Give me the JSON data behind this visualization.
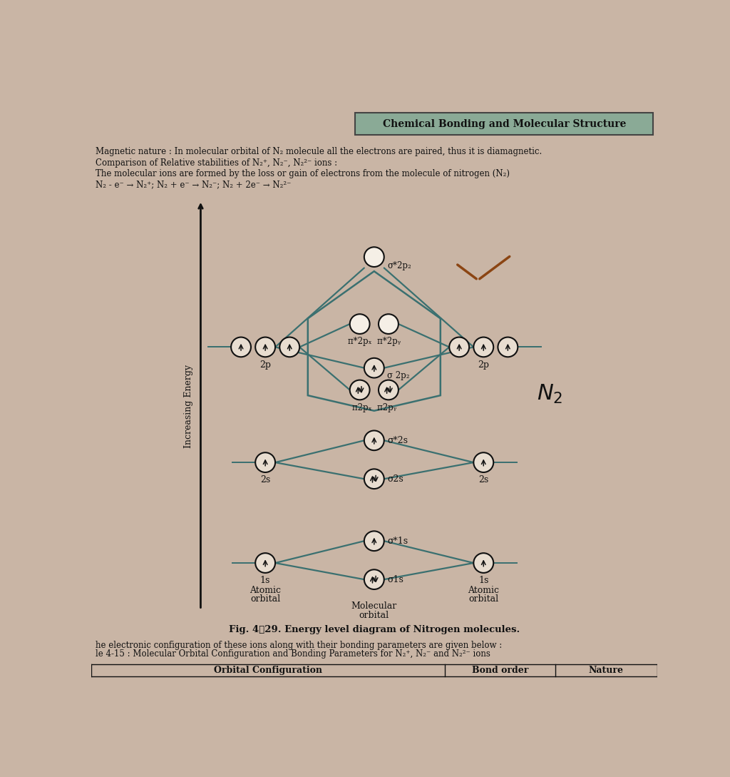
{
  "bg_color": "#c9b5a5",
  "header_bg": "#8aaa96",
  "header_text": "Chemical Bonding and Molecular Structure",
  "header_text_color": "#111111",
  "title_line1": "Magnetic nature : In molecular orbital of N₂ molecule all the electrons are paired, thus it is diamagnetic.",
  "title_line2": "Comparison of Relative stabilities of N₂⁺, N₂⁻, N₂²⁻ ions :",
  "title_line3": "The molecular ions are formed by the loss or gain of electrons from the molecule of nitrogen (N₂)",
  "title_line4": "N₂ - e⁻ → N₂⁺; N₂ + e⁻ → N₂⁻; N₂ + 2e⁻ → N₂²⁻",
  "line_color": "#3a7070",
  "circle_fill": "#e8ddd0",
  "circle_edge": "#111111",
  "text_color": "#111111",
  "caption": "Fig. 4 29. Energy level diagram of Nitrogen molecules.",
  "bottom_text1": "he electronic configuration of these ions along with their bonding parameters are given below :",
  "bottom_text2": "le 4‐15 : Molecular Orbital Configuration and Bonding Parameters for N₂⁺, N₂⁻ and N₂²⁻ ions"
}
